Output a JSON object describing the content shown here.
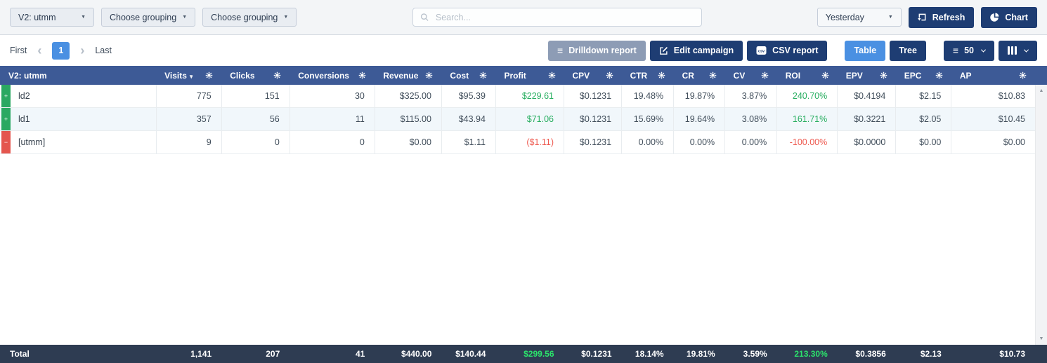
{
  "colors": {
    "accent_blue": "#4a90e2",
    "header_blue": "#3d5a96",
    "navy": "#1e3d73",
    "muted_navy": "#8d9cb5",
    "positive": "#27ae60",
    "negative": "#ee5a50",
    "indicator_positive": "#2aa862",
    "indicator_negative": "#e4564e",
    "total_bg": "#2e3c52",
    "total_positive": "#2be26b"
  },
  "icons": {
    "select_caret": "▼",
    "sort_caret": "▾",
    "pagination_prev": "‹",
    "pagination_next": "›",
    "drilldown_list": "≡",
    "rows_list": "≡",
    "scroll_up": "▲",
    "scroll_down": "▼",
    "indicator_plus": "+",
    "indicator_minus": "−"
  },
  "toolbar": {
    "campaign_select": "V2: utmm",
    "grouping_select_1": "Choose grouping",
    "grouping_select_2": "Choose grouping",
    "search_placeholder": "Search...",
    "date_select": "Yesterday",
    "refresh_button": "Refresh",
    "chart_button": "Chart"
  },
  "actionbar": {
    "pagination": {
      "first": "First",
      "page": "1",
      "last": "Last"
    },
    "drilldown_button": "Drilldown report",
    "edit_button": "Edit campaign",
    "csv_button": "CSV report",
    "csv_icon_text": "csv",
    "table_button": "Table",
    "tree_button": "Tree",
    "page_size": "50"
  },
  "table": {
    "columns": [
      {
        "key": "name",
        "label": "V2: utmm",
        "gear": false,
        "sort": false
      },
      {
        "key": "visits",
        "label": "Visits",
        "gear": true,
        "sort": true
      },
      {
        "key": "clicks",
        "label": "Clicks",
        "gear": true,
        "sort": false
      },
      {
        "key": "conversions",
        "label": "Conversions",
        "gear": true,
        "sort": false
      },
      {
        "key": "revenue",
        "label": "Revenue",
        "gear": true,
        "sort": false
      },
      {
        "key": "cost",
        "label": "Cost",
        "gear": true,
        "sort": false
      },
      {
        "key": "profit",
        "label": "Profit",
        "gear": true,
        "sort": false
      },
      {
        "key": "cpv",
        "label": "CPV",
        "gear": true,
        "sort": false
      },
      {
        "key": "ctr",
        "label": "CTR",
        "gear": true,
        "sort": false
      },
      {
        "key": "cr",
        "label": "CR",
        "gear": true,
        "sort": false
      },
      {
        "key": "cv",
        "label": "CV",
        "gear": true,
        "sort": false
      },
      {
        "key": "roi",
        "label": "ROI",
        "gear": true,
        "sort": false
      },
      {
        "key": "epv",
        "label": "EPV",
        "gear": true,
        "sort": false
      },
      {
        "key": "epc",
        "label": "EPC",
        "gear": true,
        "sort": false
      },
      {
        "key": "ap",
        "label": "AP",
        "gear": true,
        "sort": false
      }
    ],
    "rows": [
      {
        "name": "ld2",
        "status": "positive",
        "values": [
          "775",
          "151",
          "30",
          "$325.00",
          "$95.39",
          "$229.61",
          "$0.1231",
          "19.48%",
          "19.87%",
          "3.87%",
          "240.70%",
          "$0.4194",
          "$2.15",
          "$10.83"
        ],
        "value_states": {
          "5": "pos",
          "10": "pos"
        }
      },
      {
        "name": "ld1",
        "status": "positive",
        "values": [
          "357",
          "56",
          "11",
          "$115.00",
          "$43.94",
          "$71.06",
          "$0.1231",
          "15.69%",
          "19.64%",
          "3.08%",
          "161.71%",
          "$0.3221",
          "$2.05",
          "$10.45"
        ],
        "value_states": {
          "5": "pos",
          "10": "pos"
        }
      },
      {
        "name": "[utmm]",
        "status": "negative",
        "values": [
          "9",
          "0",
          "0",
          "$0.00",
          "$1.11",
          "($1.11)",
          "$0.1231",
          "0.00%",
          "0.00%",
          "0.00%",
          "-100.00%",
          "$0.0000",
          "$0.00",
          "$0.00"
        ],
        "value_states": {
          "5": "neg",
          "10": "neg"
        }
      }
    ],
    "total": {
      "label": "Total",
      "values": [
        "1,141",
        "207",
        "41",
        "$440.00",
        "$140.44",
        "$299.56",
        "$0.1231",
        "18.14%",
        "19.81%",
        "3.59%",
        "213.30%",
        "$0.3856",
        "$2.13",
        "$10.73"
      ],
      "value_states": {
        "5": "tpos",
        "10": "tpos"
      }
    }
  }
}
